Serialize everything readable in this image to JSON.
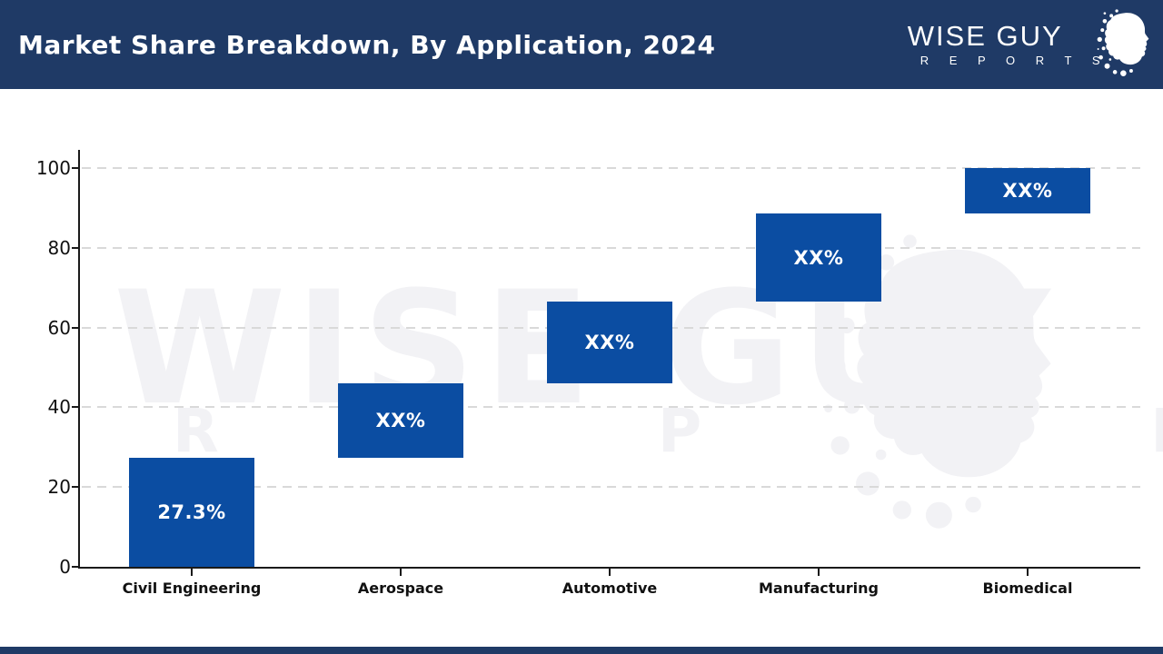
{
  "header": {
    "title": "Market Share Breakdown, By Application, 2024",
    "logo": {
      "name": "WISE GUY",
      "tagline": "R E P O R T S"
    }
  },
  "watermark": {
    "line1": "WISE GUY",
    "line2": "R E P O R T S"
  },
  "chart_data": {
    "type": "bar",
    "variant": "cumulative-waterfall",
    "title": "Market Share Breakdown, By Application, 2024",
    "categories": [
      "Civil Engineering",
      "Aerospace",
      "Automotive",
      "Manufacturing",
      "Biomedical"
    ],
    "segments": [
      {
        "category": "Civil Engineering",
        "start": 0,
        "end": 27.3,
        "label": "27.3%"
      },
      {
        "category": "Aerospace",
        "start": 27.3,
        "end": 46,
        "label": "XX%"
      },
      {
        "category": "Automotive",
        "start": 46,
        "end": 66.5,
        "label": "XX%"
      },
      {
        "category": "Manufacturing",
        "start": 66.5,
        "end": 88.5,
        "label": "XX%"
      },
      {
        "category": "Biomedical",
        "start": 88.5,
        "end": 100,
        "label": "XX%"
      }
    ],
    "ylim": [
      0,
      100
    ],
    "yticks": [
      0,
      20,
      40,
      60,
      80,
      100
    ],
    "xlabel": "",
    "ylabel": "",
    "grid": "horizontal-dashed",
    "legend": "none"
  },
  "colors": {
    "header_bg": "#1F3A66",
    "footer_bg": "#1F3A66",
    "bar": "#0B4DA2",
    "bar_label": "#FFFFFF",
    "grid": "#D9D9D9",
    "axis": "#1A1A1A",
    "watermark": "#F2F2F5"
  }
}
